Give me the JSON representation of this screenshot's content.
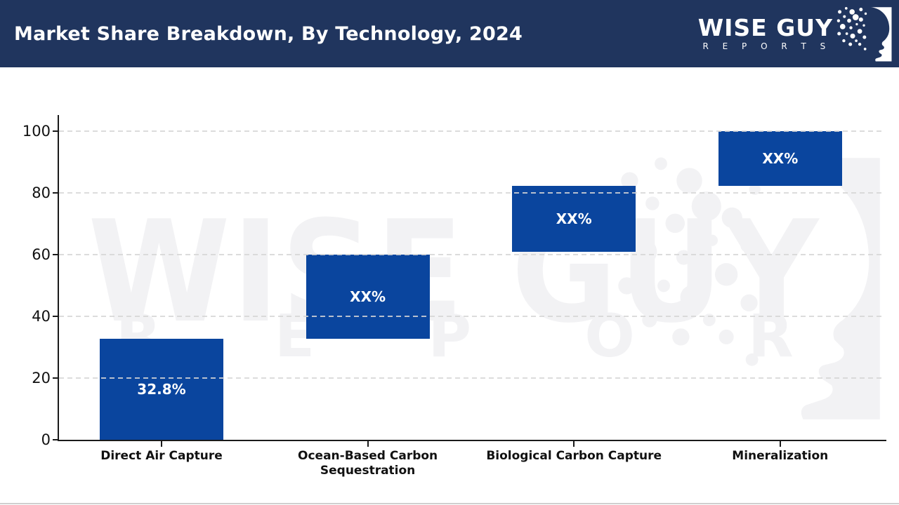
{
  "header": {
    "title": "Market Share Breakdown, By Technology, 2024",
    "logo": {
      "line1": "WISE GUY",
      "line2": "R E P O R T S"
    }
  },
  "watermark": {
    "line1": "WISE GUY",
    "line2": "R E P O R T S"
  },
  "colors": {
    "header_bg": "#20355e",
    "bar": "#0a459e",
    "bar_label_text": "#ffffff",
    "title_text": "#ffffff",
    "gridline": "#d6d6d6",
    "axis": "#1a1a1a",
    "watermark": "#f2f2f4"
  },
  "chart_data": {
    "type": "bar",
    "subtype": "waterfall",
    "title": "Market Share Breakdown, By Technology, 2024",
    "xlabel": "",
    "ylabel": "",
    "ylim": [
      0,
      100
    ],
    "yticks": [
      0,
      20,
      40,
      60,
      80,
      100
    ],
    "grid": "horizontal-dashed",
    "legend": "none",
    "categories": [
      "Direct Air Capture",
      "Ocean-Based Carbon Sequestration",
      "Biological Carbon Capture",
      "Mineralization"
    ],
    "segments": [
      {
        "category": "Direct Air Capture",
        "start": 0,
        "end": 32.8,
        "label": "32.8%"
      },
      {
        "category": "Ocean-Based Carbon Sequestration",
        "start": 32.8,
        "end": 60,
        "label": "XX%"
      },
      {
        "category": "Biological Carbon Capture",
        "start": 61,
        "end": 82.3,
        "label": "XX%"
      },
      {
        "category": "Mineralization",
        "start": 82.3,
        "end": 100,
        "label": "XX%"
      }
    ]
  }
}
